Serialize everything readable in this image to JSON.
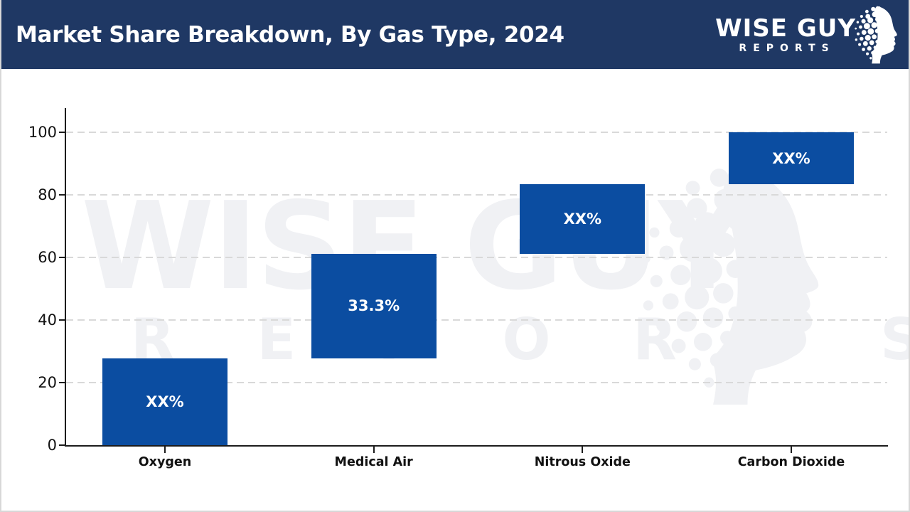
{
  "header": {
    "title": "Market Share Breakdown, By Gas Type, 2024",
    "bg_color": "#1f3864",
    "logo": {
      "line1": "WISE GUY",
      "line2": "REPORTS"
    }
  },
  "watermark": {
    "line1": "WISE GUY",
    "line2": "R E P O R T S"
  },
  "chart_data": {
    "type": "bar",
    "subtype": "waterfall",
    "title": "Market Share Breakdown, By Gas Type, 2024",
    "xlabel": "",
    "ylabel": "",
    "categories": [
      "Oxygen",
      "Medical Air",
      "Nitrous Oxide",
      "Carbon Dioxide"
    ],
    "segments": [
      {
        "category": "Oxygen",
        "start": 0,
        "end": 27.8,
        "value": 27.8,
        "label": "XX%"
      },
      {
        "category": "Medical Air",
        "start": 27.8,
        "end": 61.1,
        "value": 33.3,
        "label": "33.3%"
      },
      {
        "category": "Nitrous Oxide",
        "start": 61.1,
        "end": 83.3,
        "value": 22.2,
        "label": "XX%"
      },
      {
        "category": "Carbon Dioxide",
        "start": 83.3,
        "end": 100,
        "value": 16.7,
        "label": "XX%"
      }
    ],
    "yticks": [
      0,
      20,
      40,
      60,
      80,
      100
    ],
    "ylim": [
      0,
      107.5
    ],
    "grid": "horizontal-dashed",
    "legend": "none",
    "bar_color": "#0b4da1",
    "grid_color": "#d9d9d9",
    "axis_color": "#1c1c1c",
    "bar_label_color": "#ffffff"
  }
}
